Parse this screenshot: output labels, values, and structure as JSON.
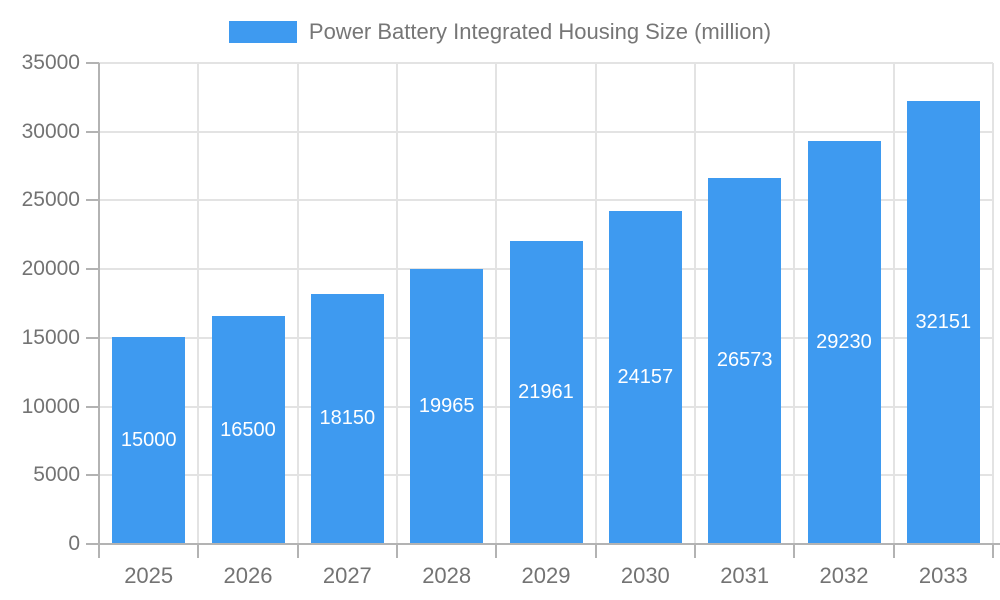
{
  "chart_data": {
    "type": "bar",
    "title": "Power Battery Integrated Housing Size (million)",
    "legend_position": "top",
    "categories": [
      "2025",
      "2026",
      "2027",
      "2028",
      "2029",
      "2030",
      "2031",
      "2032",
      "2033"
    ],
    "values": [
      15000,
      16500,
      18150,
      19965,
      21961,
      24157,
      26573,
      29230,
      32151
    ],
    "xlabel": "",
    "ylabel": "",
    "ylim": [
      0,
      35000
    ],
    "yticks": [
      0,
      5000,
      10000,
      15000,
      20000,
      25000,
      30000,
      35000
    ],
    "grid": true,
    "bar_label_position": "inside-center"
  },
  "colors": {
    "bar": "#3E9AF0",
    "grid": "#E3E3E3",
    "axis": "#B3B3B3",
    "tick_label": "#737373",
    "legend_text": "#767676",
    "bar_label": "#FFFFFF",
    "background": "#FFFFFF"
  }
}
